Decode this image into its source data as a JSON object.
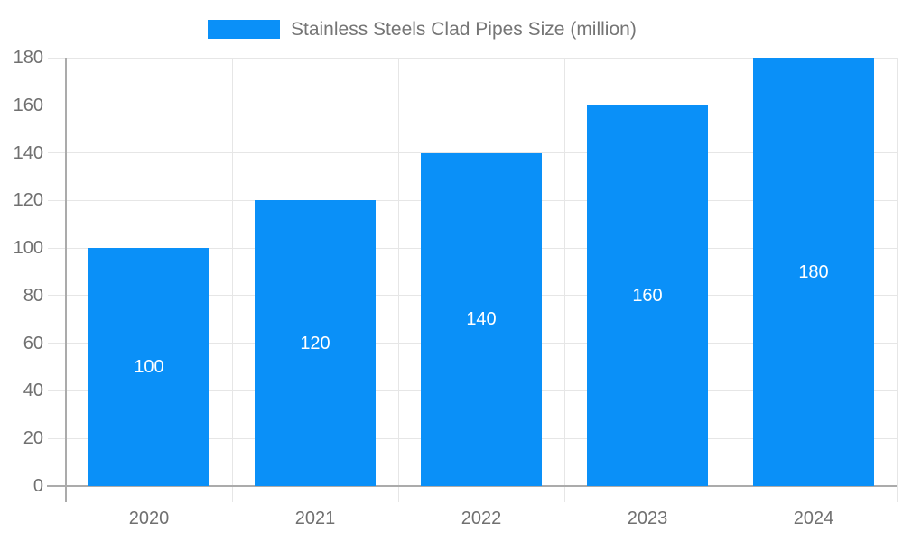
{
  "chart_data": {
    "type": "bar",
    "title": "Stainless Steels Clad Pipes Size (million)",
    "legend_label": "Stainless Steels Clad Pipes Size (million)",
    "categories": [
      "2020",
      "2021",
      "2022",
      "2023",
      "2024"
    ],
    "values": [
      100,
      120,
      140,
      160,
      180
    ],
    "data_labels": [
      "100",
      "120",
      "140",
      "160",
      "180"
    ],
    "xlabel": "",
    "ylabel": "",
    "ylim": [
      0,
      180
    ],
    "ytick_step": 20,
    "yticks": [
      0,
      20,
      40,
      60,
      80,
      100,
      120,
      140,
      160,
      180
    ],
    "grid": true,
    "legend_position": "top",
    "show_data_labels": true,
    "colors": {
      "bar": "#0A90F8",
      "axis_line": "#ABABAB",
      "gridline": "#E6E6E6",
      "tick_label": "#707070",
      "legend_text": "#757575",
      "data_label": "#FFFFFF",
      "background": "#FFFFFF"
    }
  }
}
